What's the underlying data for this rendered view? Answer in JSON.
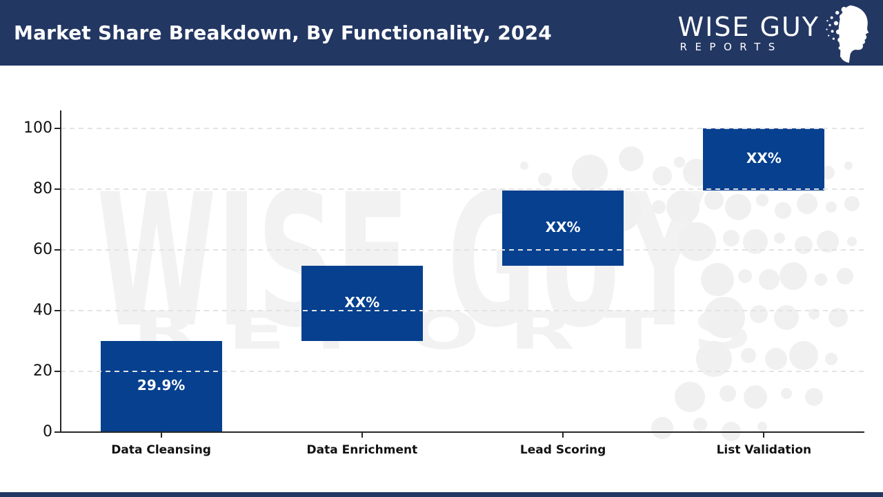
{
  "header": {
    "title": "Market Share Breakdown, By Functionality, 2024",
    "logo": {
      "wise_guy": "WISE GUY",
      "reports": "REPORTS"
    }
  },
  "watermark": {
    "line1": "WISE GUY",
    "line2": "R E P O R T S"
  },
  "footer": {
    "note": ""
  },
  "colors": {
    "header_navy": "#233763",
    "bar_blue": "#06408f",
    "gridline": "#e3e3e3",
    "axis": "#262626",
    "bar_label": "#ffffff",
    "watermark_gray": "#f2f2f2"
  },
  "chart_data": {
    "type": "bar",
    "subtype": "waterfall-floating-segments",
    "title": "Market Share Breakdown, By Functionality, 2024",
    "xlabel": "",
    "ylabel": "",
    "ylim": [
      0,
      107
    ],
    "yticks": [
      0,
      20,
      40,
      60,
      80,
      100
    ],
    "grid": "dashed-horizontal",
    "legend": "none",
    "categories": [
      "Data Cleansing",
      "Data Enrichment",
      "Lead Scoring",
      "List Validation"
    ],
    "segments": [
      {
        "category": "Data Cleansing",
        "start": 0,
        "end": 29.9,
        "label": "29.9%"
      },
      {
        "category": "Data Enrichment",
        "start": 29.9,
        "end": 54.8,
        "label": "XX%"
      },
      {
        "category": "Lead Scoring",
        "start": 54.8,
        "end": 79.5,
        "label": "XX%"
      },
      {
        "category": "List Validation",
        "start": 79.5,
        "end": 100,
        "label": "XX%"
      }
    ]
  }
}
